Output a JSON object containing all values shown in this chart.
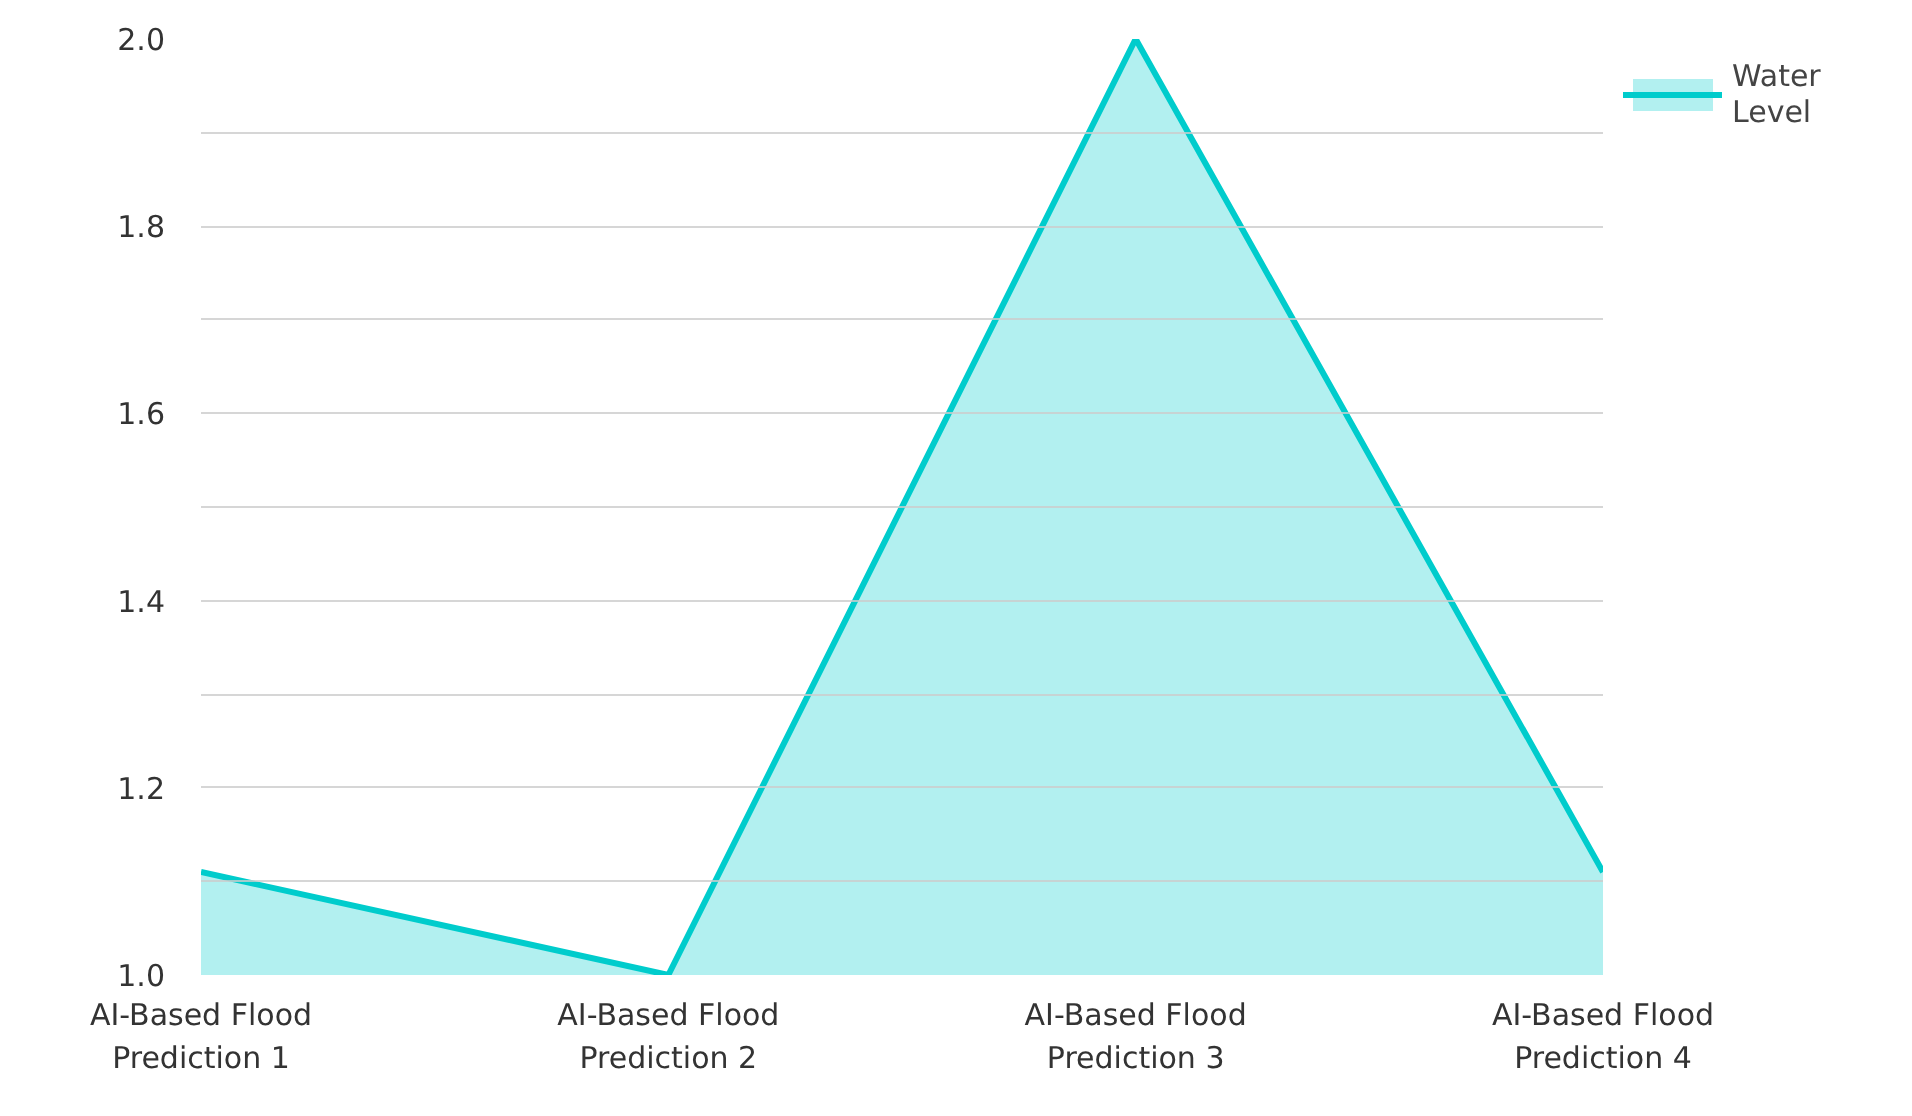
{
  "chart_data": {
    "type": "area",
    "categories": [
      "AI-Based Flood Prediction 1",
      "AI-Based Flood Prediction 2",
      "AI-Based Flood Prediction 3",
      "AI-Based Flood Prediction 4"
    ],
    "series": [
      {
        "name": "Water Level",
        "color": "#00cccc",
        "values": [
          1.11,
          1.0,
          2.0,
          1.11
        ]
      }
    ],
    "ylim": [
      1.0,
      2.0
    ],
    "yticks": [
      {
        "value": 1.0,
        "label": "1.0"
      },
      {
        "value": 1.1,
        "label": null
      },
      1.2,
      {
        "value": 1.3,
        "label": null
      },
      1.4,
      {
        "value": 1.5,
        "label": null
      },
      1.6,
      {
        "value": 1.7,
        "label": null
      },
      1.8,
      {
        "value": 1.9,
        "label": null
      },
      {
        "value": 2.0,
        "label": "2.0"
      }
    ],
    "grid": "y",
    "legend": "top right"
  }
}
